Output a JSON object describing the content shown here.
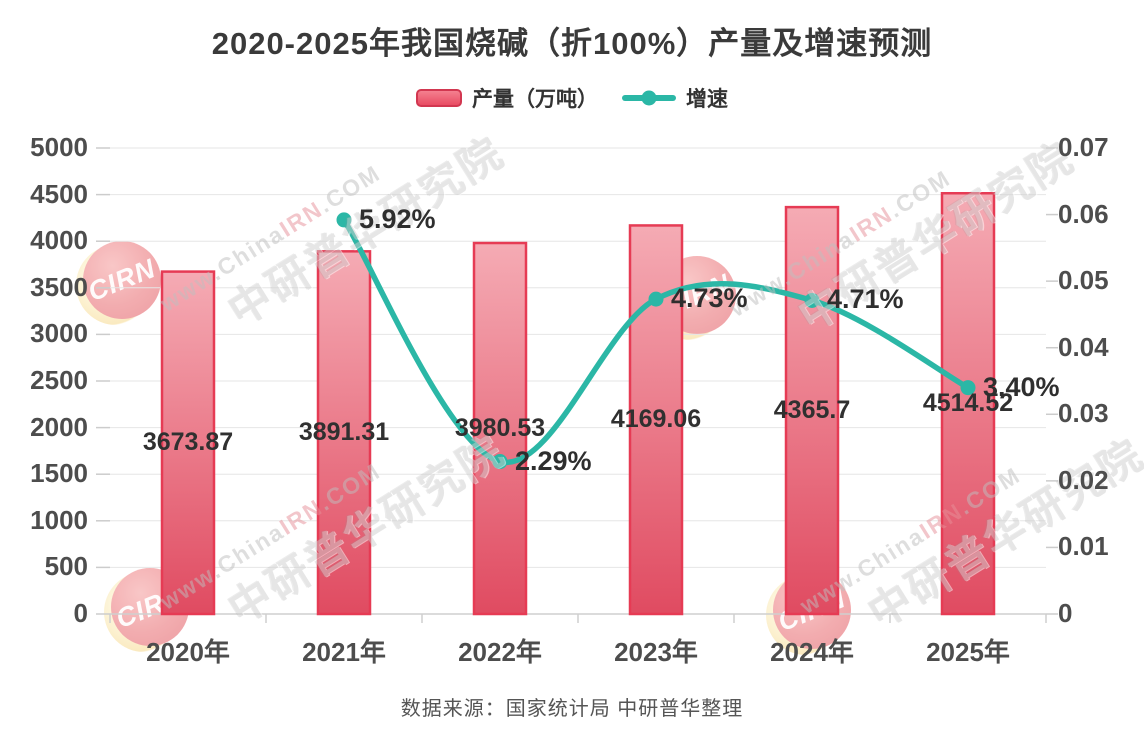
{
  "title": "2020-2025年我国烧碱（折100%）产量及增速预测",
  "legend": {
    "bar_label": "产量（万吨）",
    "line_label": "增速"
  },
  "source": "数据来源：国家统计局 中研普华整理",
  "watermark": {
    "line1_prefix": "www.China",
    "line1_mid": "IRN",
    "line1_suffix": ".COM",
    "line2": "中研普华研究院",
    "logo_text": "CIRN"
  },
  "colors": {
    "bar_fill_top": "#f5abb4",
    "bar_fill_bottom": "#e04b61",
    "bar_border": "#e63b54",
    "line": "#2bb7a6",
    "grid": "#e6e6e6",
    "axis_line": "#cfcfcf",
    "axis_label": "#4d4d4d",
    "data_label": "#303030"
  },
  "chart_data": {
    "type": "bar",
    "title": "2020-2025年我国烧碱（折100%）产量及增速预测",
    "categories": [
      "2020年",
      "2021年",
      "2022年",
      "2023年",
      "2024年",
      "2025年"
    ],
    "series": [
      {
        "name": "产量（万吨）",
        "type": "bar",
        "axis": "left",
        "values": [
          3673.87,
          3891.31,
          3980.53,
          4169.06,
          4365.7,
          4514.52
        ],
        "labels": [
          "3673.87",
          "3891.31",
          "3980.53",
          "4169.06",
          "4365.7",
          "4514.52"
        ]
      },
      {
        "name": "增速",
        "type": "line",
        "axis": "right",
        "values": [
          null,
          0.0592,
          0.0229,
          0.0473,
          0.0471,
          0.034
        ],
        "labels": [
          null,
          "5.92%",
          "2.29%",
          "4.73%",
          "4.71%",
          "3.40%"
        ]
      }
    ],
    "left_axis": {
      "min": 0,
      "max": 5000,
      "step": 500,
      "ticks": [
        "0",
        "500",
        "1000",
        "1500",
        "2000",
        "2500",
        "3000",
        "3500",
        "4000",
        "4500",
        "5000"
      ]
    },
    "right_axis": {
      "min": 0,
      "max": 0.07,
      "step": 0.01,
      "ticks": [
        "0",
        "0.01",
        "0.02",
        "0.03",
        "0.04",
        "0.05",
        "0.06",
        "0.07"
      ]
    },
    "grid": "horizontal-left-axis-only",
    "legend_position": "top-center",
    "xlabel": "",
    "ylabel_left": "产量（万吨）",
    "ylabel_right": "增速"
  }
}
